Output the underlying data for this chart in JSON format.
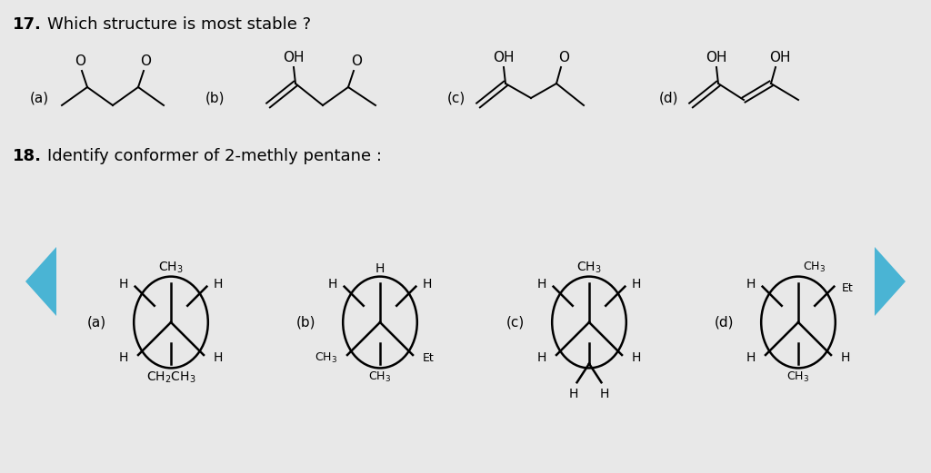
{
  "bg_color": "#e8e8e8",
  "line_color": "#000000",
  "q17_text": "17.",
  "q17_question": "Which structure is most stable ?",
  "q18_text": "18.",
  "q18_question": "Identify conformer of 2-methly pentane :",
  "arrow_color": "#4ab4d4",
  "font_size_q": 13,
  "font_size_sub": 10,
  "font_size_label": 11
}
